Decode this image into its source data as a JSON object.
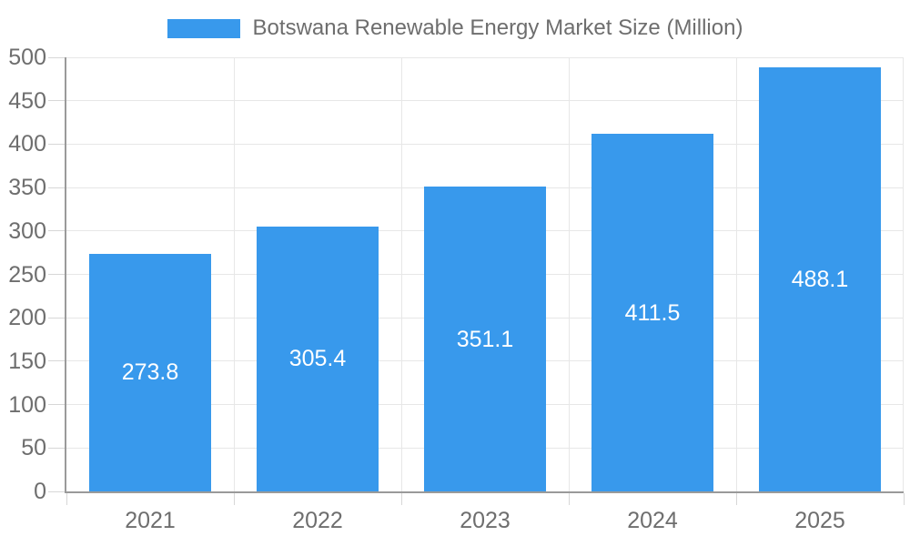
{
  "legend": {
    "label": "Botswana Renewable Energy Market Size (Million)"
  },
  "colors": {
    "bar": "#3899ec",
    "grid": "#e7e7e7",
    "tick": "#d7d7d7",
    "axis": "#9a9a9a",
    "text": "#6e6e6e",
    "value_label": "#ffffff",
    "background": "#ffffff"
  },
  "chart_data": {
    "type": "bar",
    "title": "Botswana Renewable Energy Market Size (Million)",
    "series_name": "Botswana Renewable Energy Market Size (Million)",
    "categories": [
      "2021",
      "2022",
      "2023",
      "2024",
      "2025"
    ],
    "values": [
      273.8,
      305.4,
      351.1,
      411.5,
      488.1
    ],
    "value_labels": [
      "273.8",
      "305.4",
      "351.1",
      "411.5",
      "488.1"
    ],
    "xlabel": "",
    "ylabel": "",
    "ylim": [
      0,
      500
    ],
    "ytick_step": 50,
    "yticks": [
      0,
      50,
      100,
      150,
      200,
      250,
      300,
      350,
      400,
      450,
      500
    ],
    "grid": true,
    "legend_position": "top",
    "value_label_position": "inside-center"
  }
}
